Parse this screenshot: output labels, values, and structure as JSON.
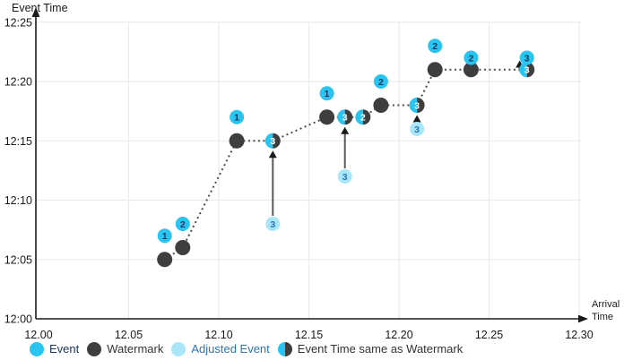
{
  "axis_titles": {
    "y": "Event Time",
    "x_line1": "Arrival",
    "x_line2": "Time"
  },
  "legend": {
    "items": [
      {
        "key": "event",
        "label": "Event"
      },
      {
        "key": "watermark",
        "label": "Watermark"
      },
      {
        "key": "adjusted",
        "label": "Adjusted Event"
      },
      {
        "key": "same",
        "label": "Event Time same as Watermark"
      }
    ]
  },
  "colors": {
    "event": "#29C4F0",
    "event_number": "#17375E",
    "watermark": "#3E3E3E",
    "adjusted": "#A9E6F8",
    "adjusted_number": "#2E75B6",
    "same_left": "#29C4F0",
    "same_right": "#3E3E3E",
    "same_number": "#FFFFFF",
    "grid": "#EBEBEB",
    "axis": "#1A1A1A",
    "dotted_line": "#4D4D4D",
    "arrow_stem": "#595959",
    "arrow_head": "#1A1A1A",
    "tick_text": "#1A1A1A",
    "legend_text_dark": "#333333"
  },
  "chart_data": {
    "type": "scatter",
    "title": "",
    "xlabel": "Arrival Time",
    "ylabel": "Event Time",
    "xlim_minutes_after_12": [
      0,
      31
    ],
    "ylim_minutes_after_12": [
      0,
      26.5
    ],
    "grid": true,
    "legend_position": "bottom",
    "x_ticks": [
      {
        "m": 0,
        "label": "12.00"
      },
      {
        "m": 5,
        "label": "12.05"
      },
      {
        "m": 10,
        "label": "12.10"
      },
      {
        "m": 15,
        "label": "12.15"
      },
      {
        "m": 20,
        "label": "12.20"
      },
      {
        "m": 25,
        "label": "12.25"
      },
      {
        "m": 30,
        "label": "12.30"
      }
    ],
    "y_ticks": [
      {
        "m": 0,
        "label": "12:00"
      },
      {
        "m": 5,
        "label": "12:05"
      },
      {
        "m": 10,
        "label": "12:10"
      },
      {
        "m": 15,
        "label": "12:15"
      },
      {
        "m": 20,
        "label": "12:20"
      },
      {
        "m": 25,
        "label": "12:25"
      }
    ],
    "watermark_line": [
      [
        7,
        5
      ],
      [
        8,
        6
      ],
      [
        11,
        15
      ],
      [
        13,
        15
      ],
      [
        16,
        17
      ],
      [
        17,
        17
      ],
      [
        18,
        17
      ],
      [
        19,
        18
      ],
      [
        21,
        18
      ],
      [
        22,
        21
      ],
      [
        24,
        21
      ],
      [
        27.1,
        21
      ]
    ],
    "points": {
      "events": [
        {
          "label": "1",
          "arrival": 7,
          "event_time": 7
        },
        {
          "label": "2",
          "arrival": 8,
          "event_time": 8
        },
        {
          "label": "1",
          "arrival": 11,
          "event_time": 17
        },
        {
          "label": "1",
          "arrival": 16,
          "event_time": 19
        },
        {
          "label": "2",
          "arrival": 19,
          "event_time": 20
        },
        {
          "label": "2",
          "arrival": 22,
          "event_time": 23
        },
        {
          "label": "2",
          "arrival": 24,
          "event_time": 22
        },
        {
          "label": "3",
          "arrival": 27.1,
          "event_time": 22
        }
      ],
      "watermarks": [
        {
          "arrival": 7,
          "event_time": 5
        },
        {
          "arrival": 8,
          "event_time": 6
        },
        {
          "arrival": 11,
          "event_time": 15
        },
        {
          "arrival": 16,
          "event_time": 17
        },
        {
          "arrival": 19,
          "event_time": 18
        },
        {
          "arrival": 22,
          "event_time": 21
        },
        {
          "arrival": 24,
          "event_time": 21
        }
      ],
      "adjusted_events": [
        {
          "label": "3",
          "arrival": 13,
          "event_time": 8
        },
        {
          "label": "3",
          "arrival": 17,
          "event_time": 12
        },
        {
          "label": "3",
          "arrival": 21,
          "event_time": 16
        }
      ],
      "same_as_watermark": [
        {
          "label": "3",
          "arrival": 13,
          "event_time": 15
        },
        {
          "label": "3",
          "arrival": 17,
          "event_time": 17
        },
        {
          "label": "2",
          "arrival": 18,
          "event_time": 17
        },
        {
          "label": "3",
          "arrival": 21,
          "event_time": 18
        },
        {
          "label": "3",
          "arrival": 27.1,
          "event_time": 21
        }
      ]
    },
    "adjustment_arrows": [
      {
        "x": 13,
        "from": 8,
        "to": 15
      },
      {
        "x": 17,
        "from": 12,
        "to": 17
      },
      {
        "x": 21,
        "from": 16,
        "to": 18
      },
      {
        "x": 26.7,
        "from": 20.2,
        "to": 22.6
      }
    ]
  }
}
